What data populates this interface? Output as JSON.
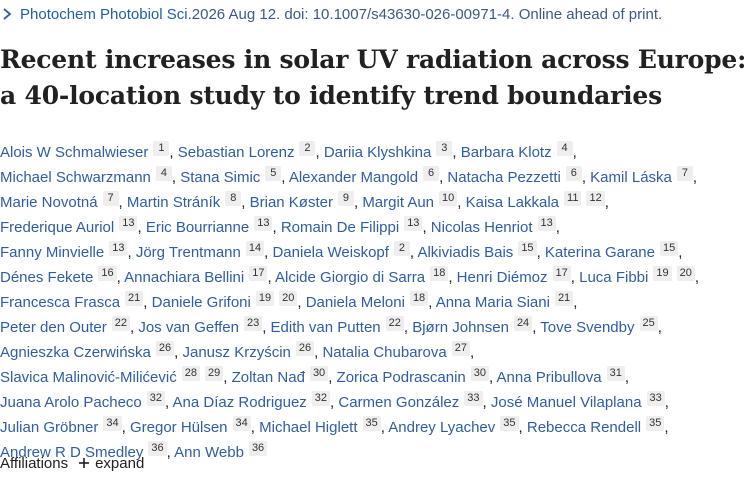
{
  "citation": {
    "journal": "Photochem Photobiol Sci.",
    "rest": " 2026 Aug 12. doi: 10.1007/s43630-026-00971-4. Online ahead of print."
  },
  "title": {
    "line1": "Recent increases in solar UV radiation across Europe:",
    "line2": "a 40-location study to identify trend boundaries"
  },
  "authors": [
    [
      [
        "Alois W Schmalwieser",
        "1"
      ],
      [
        "Sebastian Lorenz",
        "2"
      ],
      [
        "Dariia Klyshkina",
        "3"
      ],
      [
        "Barbara Klotz",
        "4"
      ]
    ],
    [
      [
        "Michael Schwarzmann",
        "4"
      ],
      [
        "Stana Simic",
        "5"
      ],
      [
        "Alexander Mangold",
        "6"
      ],
      [
        "Natacha Pezzetti",
        "6"
      ],
      [
        "Kamil Láska",
        "7"
      ]
    ],
    [
      [
        "Marie Novotná",
        "7"
      ],
      [
        "Martin Stráník",
        "8"
      ],
      [
        "Brian Køster",
        "9"
      ],
      [
        "Margit Aun",
        "10"
      ],
      [
        "Kaisa Lakkala",
        "11",
        "12"
      ]
    ],
    [
      [
        "Frederique Auriol",
        "13"
      ],
      [
        "Eric Bourrianne",
        "13"
      ],
      [
        "Romain De Filippi",
        "13"
      ],
      [
        "Nicolas Henriot",
        "13"
      ]
    ],
    [
      [
        "Fanny Minvielle",
        "13"
      ],
      [
        "Jörg Trentmann",
        "14"
      ],
      [
        "Daniela Weiskopf",
        "2"
      ],
      [
        "Alkiviadis Bais",
        "15"
      ],
      [
        "Katerina Garane",
        "15"
      ]
    ],
    [
      [
        "Dénes Fekete",
        "16"
      ],
      [
        "Annachiara Bellini",
        "17"
      ],
      [
        "Alcide Giorgio di Sarra",
        "18"
      ],
      [
        "Henri Diémoz",
        "17"
      ],
      [
        "Luca Fibbi",
        "19",
        "20"
      ]
    ],
    [
      [
        "Francesca Frasca",
        "21"
      ],
      [
        "Daniele Grifoni",
        "19",
        "20"
      ],
      [
        "Daniela Meloni",
        "18"
      ],
      [
        "Anna Maria Siani",
        "21"
      ]
    ],
    [
      [
        "Peter den Outer",
        "22"
      ],
      [
        "Jos van Geffen",
        "23"
      ],
      [
        "Edith van Putten",
        "22"
      ],
      [
        "Bjørn Johnsen",
        "24"
      ],
      [
        "Tove Svendby",
        "25"
      ]
    ],
    [
      [
        "Agnieszka Czerwińska",
        "26"
      ],
      [
        "Janusz Krzyścin",
        "26"
      ],
      [
        "Natalia Chubarova",
        "27"
      ]
    ],
    [
      [
        "Slavica Malinović-Milićević",
        "28",
        "29"
      ],
      [
        "Zoltan Nađ",
        "30"
      ],
      [
        "Zorica Podrascanin",
        "30"
      ],
      [
        "Anna Pribullova",
        "31"
      ]
    ],
    [
      [
        "Juana Arolo Pacheco",
        "32"
      ],
      [
        "Ana Díaz Rodriguez",
        "32"
      ],
      [
        "Carmen González",
        "33"
      ],
      [
        "José Manuel Vilaplana",
        "33"
      ]
    ],
    [
      [
        "Julian Gröbner",
        "34"
      ],
      [
        "Gregor Hülsen",
        "34"
      ],
      [
        "Michael Higlett",
        "35"
      ],
      [
        "Andrey Lyachev",
        "35"
      ],
      [
        "Rebecca Rendell",
        "35"
      ]
    ],
    [
      [
        "Andrew R D Smedley",
        "36"
      ],
      [
        "Ann Webb",
        "36"
      ]
    ]
  ],
  "separator": ",",
  "affiliations": {
    "label": "Affiliations",
    "expand_label": "expand"
  },
  "icons": {
    "citation_chevron": "chevron-right-icon",
    "expand_plus": "plus-icon"
  },
  "colors": {
    "link": "#2f5da6",
    "text": "#212121",
    "badge_bg": "#eeeeee"
  }
}
